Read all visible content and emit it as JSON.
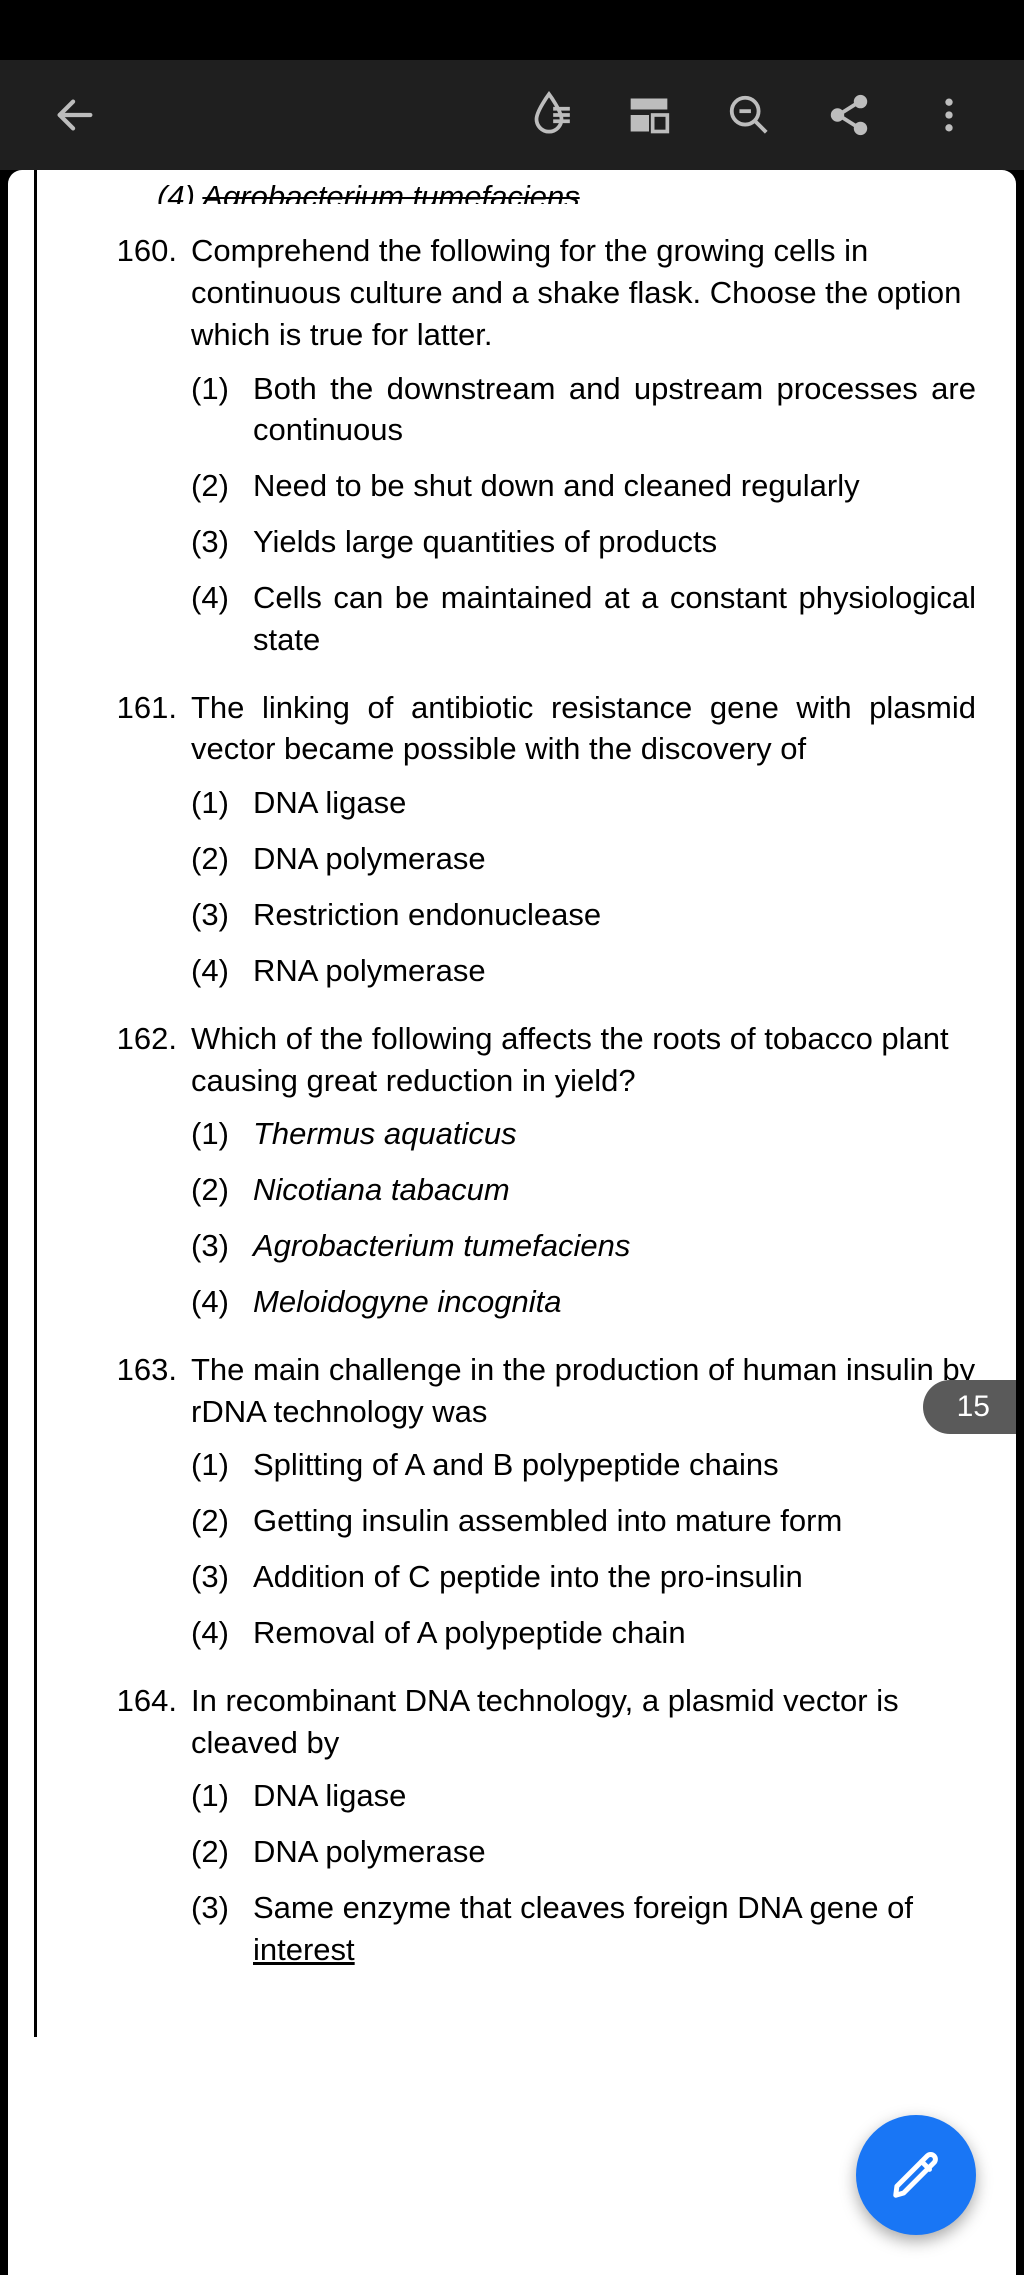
{
  "colors": {
    "page_bg": "#000000",
    "toolbar_bg": "#1f1f1f",
    "toolbar_icon": "#bdbdbd",
    "content_bg": "#ffffff",
    "text": "#000000",
    "badge_bg": "#5a5a5a",
    "badge_text": "#ffffff",
    "fab_bg": "#1976f5",
    "fab_icon": "#ffffff"
  },
  "partial_option": {
    "num": "(4)",
    "text": "Agrobacterium tumefaciens"
  },
  "page_number": "15",
  "questions": [
    {
      "num": "160.",
      "text": "Comprehend the following for the growing cells in continuous culture and a shake flask. Choose the option which is true for latter.",
      "justify": false,
      "options": [
        {
          "num": "(1)",
          "text": "Both the downstream and upstream processes are continuous",
          "justify": true
        },
        {
          "num": "(2)",
          "text": "Need to be shut down and cleaned regularly"
        },
        {
          "num": "(3)",
          "text": "Yields large quantities of products"
        },
        {
          "num": "(4)",
          "text": "Cells can be maintained at a constant physiological state",
          "justify": true
        }
      ]
    },
    {
      "num": "161.",
      "text": "The linking of antibiotic resistance gene with plasmid vector became possible with the discovery of",
      "justify": true,
      "options": [
        {
          "num": "(1)",
          "text": "DNA ligase"
        },
        {
          "num": "(2)",
          "text": "DNA polymerase"
        },
        {
          "num": "(3)",
          "text": "Restriction endonuclease"
        },
        {
          "num": "(4)",
          "text": "RNA polymerase"
        }
      ]
    },
    {
      "num": "162.",
      "text": "Which of the following affects the roots of tobacco plant causing great reduction in yield?",
      "justify": false,
      "options": [
        {
          "num": "(1)",
          "text": "Thermus aquaticus",
          "italic": true
        },
        {
          "num": "(2)",
          "text": "Nicotiana tabacum",
          "italic": true
        },
        {
          "num": "(3)",
          "text": "Agrobacterium tumefaciens",
          "italic": true
        },
        {
          "num": "(4)",
          "text": "Meloidogyne incognita",
          "italic": true
        }
      ]
    },
    {
      "num": "163.",
      "text": "The main challenge in the production of human insulin by rDNA technology was",
      "justify": false,
      "options": [
        {
          "num": "(1)",
          "text": "Splitting of A and B polypeptide chains"
        },
        {
          "num": "(2)",
          "text": "Getting insulin assembled into mature form"
        },
        {
          "num": "(3)",
          "text": "Addition of C peptide into the pro-insulin"
        },
        {
          "num": "(4)",
          "text": "Removal of A polypeptide chain"
        }
      ]
    },
    {
      "num": "164.",
      "text": "In recombinant DNA technology, a plasmid vector is cleaved by",
      "justify": false,
      "options": [
        {
          "num": "(1)",
          "text": "DNA ligase"
        },
        {
          "num": "(2)",
          "text": "DNA polymerase"
        },
        {
          "num": "(3)",
          "text_html": "Same enzyme that cleaves foreign DNA gene of <span class=\"underline\">interest</span>"
        }
      ]
    }
  ]
}
